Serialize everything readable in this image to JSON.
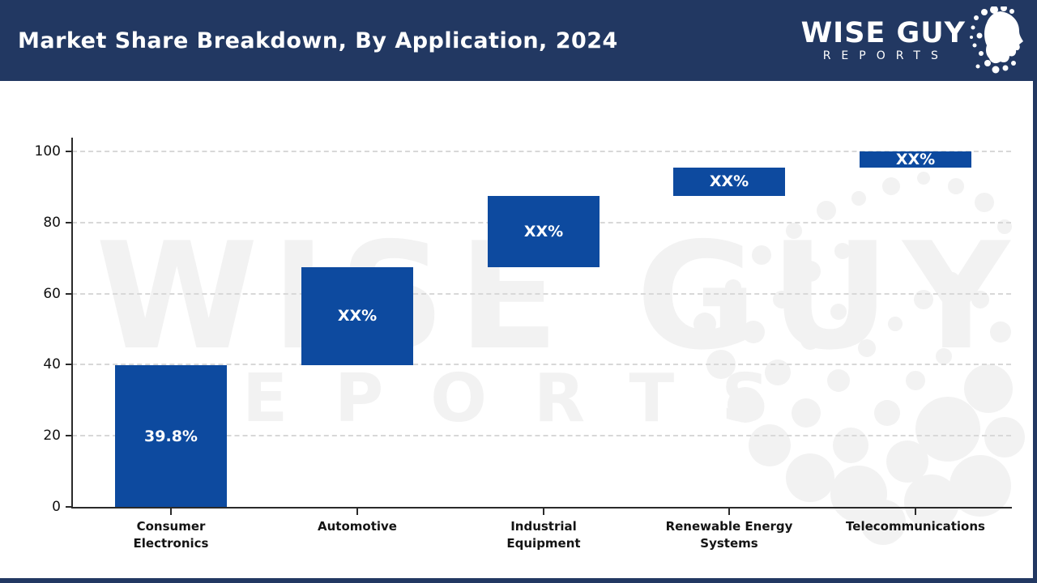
{
  "header": {
    "title": "Market Share Breakdown, By Application, 2024",
    "logo": {
      "line1": "WISE GUY",
      "line2": "REPORTS"
    }
  },
  "watermark": {
    "line1": "WISE GUY",
    "line2": "REPORTS"
  },
  "colors": {
    "header_bg": "#223862",
    "bar": "#0d4a9f",
    "bar_label": "#ffffff",
    "grid": "#d8d8d8",
    "axis": "#2a2a2a",
    "watermark": "#f2f2f2"
  },
  "chart_data": {
    "type": "bar",
    "subtype": "waterfall",
    "title": "Market Share Breakdown, By Application, 2024",
    "xlabel": "",
    "ylabel": "",
    "ylim": [
      0,
      100
    ],
    "yticks": [
      0,
      20,
      40,
      60,
      80,
      100
    ],
    "grid": "horizontal-dashed",
    "legend": "none",
    "categories": [
      "Consumer\nElectronics",
      "Automotive",
      "Industrial\nEquipment",
      "Renewable Energy\nSystems",
      "Telecommunications"
    ],
    "segments": [
      {
        "category": "Consumer Electronics",
        "start": 0,
        "end": 39.8,
        "label": "39.8%"
      },
      {
        "category": "Automotive",
        "start": 39.8,
        "end": 67.5,
        "label": "XX%"
      },
      {
        "category": "Industrial Equipment",
        "start": 67.5,
        "end": 87.5,
        "label": "XX%"
      },
      {
        "category": "Renewable Energy Systems",
        "start": 87.5,
        "end": 95.5,
        "label": "XX%"
      },
      {
        "category": "Telecommunications",
        "start": 95.5,
        "end": 100,
        "label": "XX%"
      }
    ]
  }
}
